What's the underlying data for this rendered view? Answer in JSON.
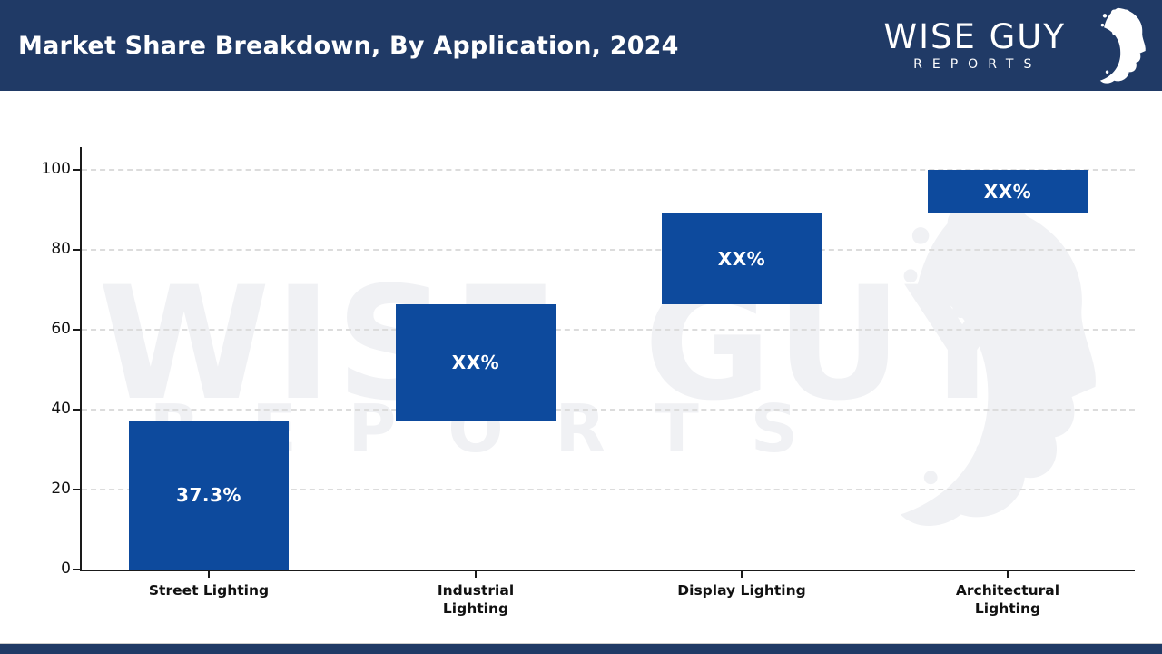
{
  "header": {
    "title": "Market Share Breakdown, By Application, 2024",
    "bg_color": "#203a66",
    "logo": {
      "line1": "WISE GUY",
      "line2": "REPORTS"
    }
  },
  "watermark": {
    "line1": "WISE GUY",
    "line2": "REPORTS"
  },
  "chart_data": {
    "type": "bar",
    "subtype": "waterfall-floating-bars",
    "title": "Market Share Breakdown, By Application, 2024",
    "categories": [
      "Street Lighting",
      "Industrial Lighting",
      "Display Lighting",
      "Architectural Lighting"
    ],
    "category_lines": [
      [
        "Street Lighting"
      ],
      [
        "Industrial",
        "Lighting"
      ],
      [
        "Display Lighting"
      ],
      [
        "Architectural",
        "Lighting"
      ]
    ],
    "segments": [
      {
        "start": 0,
        "end": 37.3,
        "label": "37.3%"
      },
      {
        "start": 37.3,
        "end": 66.3,
        "label": "XX%"
      },
      {
        "start": 66.3,
        "end": 89.3,
        "label": "XX%"
      },
      {
        "start": 89.3,
        "end": 100,
        "label": "XX%"
      }
    ],
    "ylim": [
      0,
      100
    ],
    "yticks": [
      0,
      20,
      40,
      60,
      80,
      100
    ],
    "grid": "horizontal-dashed",
    "legend": "none",
    "bar_color": "#0d4a9d",
    "bar_label_color": "#ffffff",
    "axis_color": "#1a1a1a",
    "gridline_color": "#dcdcdc"
  }
}
